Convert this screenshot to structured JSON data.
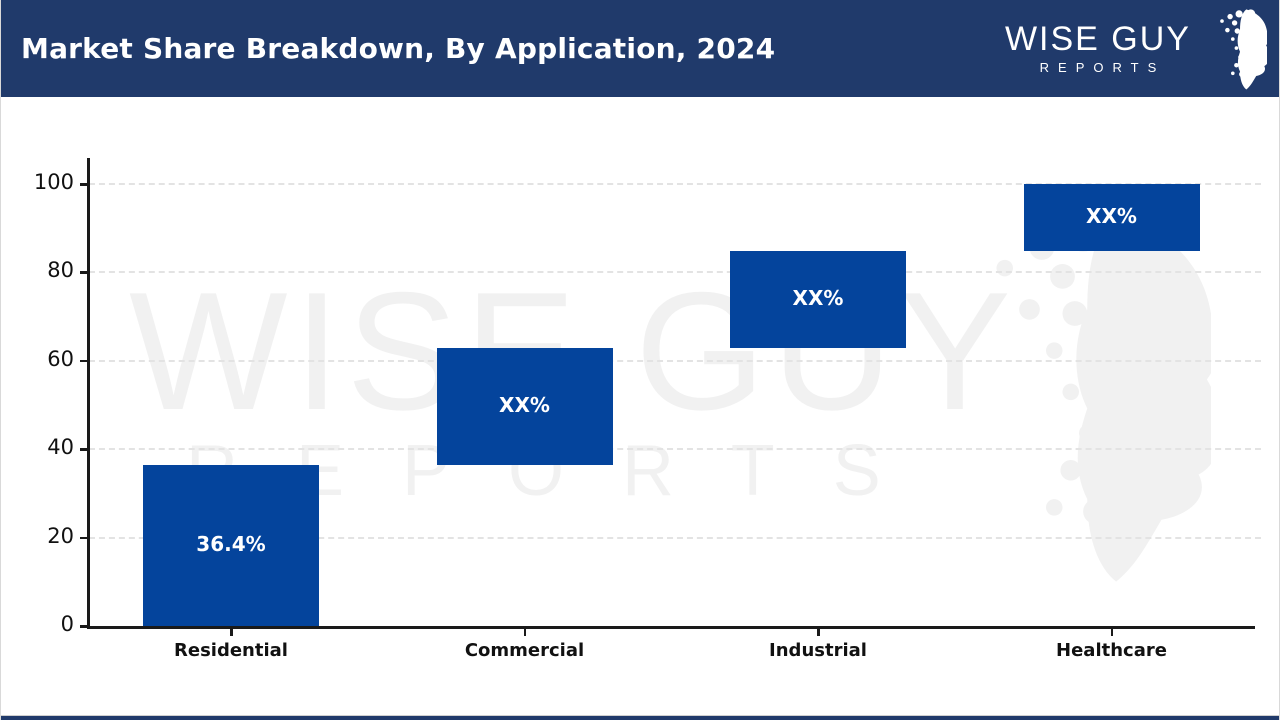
{
  "header": {
    "title": "Market Share Breakdown, By Application, 2024",
    "bg_color": "#203a6b",
    "logo": {
      "name": "WISE GUY",
      "sub": "REPORTS"
    }
  },
  "watermark": {
    "line1": "WISE GUY",
    "line2": "REPORTS"
  },
  "chart_data": {
    "type": "bar",
    "subtype": "floating-waterfall",
    "title": "Market Share Breakdown, By Application, 2024",
    "categories": [
      "Residential",
      "Commercial",
      "Industrial",
      "Healthcare"
    ],
    "segments": [
      {
        "category": "Residential",
        "start": 0,
        "end": 36.4,
        "label": "36.4%"
      },
      {
        "category": "Commercial",
        "start": 36.4,
        "end": 62.9,
        "label": "XX%"
      },
      {
        "category": "Industrial",
        "start": 62.9,
        "end": 84.8,
        "label": "XX%"
      },
      {
        "category": "Healthcare",
        "start": 84.8,
        "end": 100,
        "label": "XX%"
      }
    ],
    "xlabel": "",
    "ylabel": "",
    "ylim": [
      0,
      100
    ],
    "yticks": [
      0,
      20,
      40,
      60,
      80,
      100
    ],
    "grid": "horizontal-dashed",
    "legend": "none",
    "bar_color": "#04449c",
    "bar_label_color": "#ffffff",
    "axis_color": "#1a1a1a"
  }
}
